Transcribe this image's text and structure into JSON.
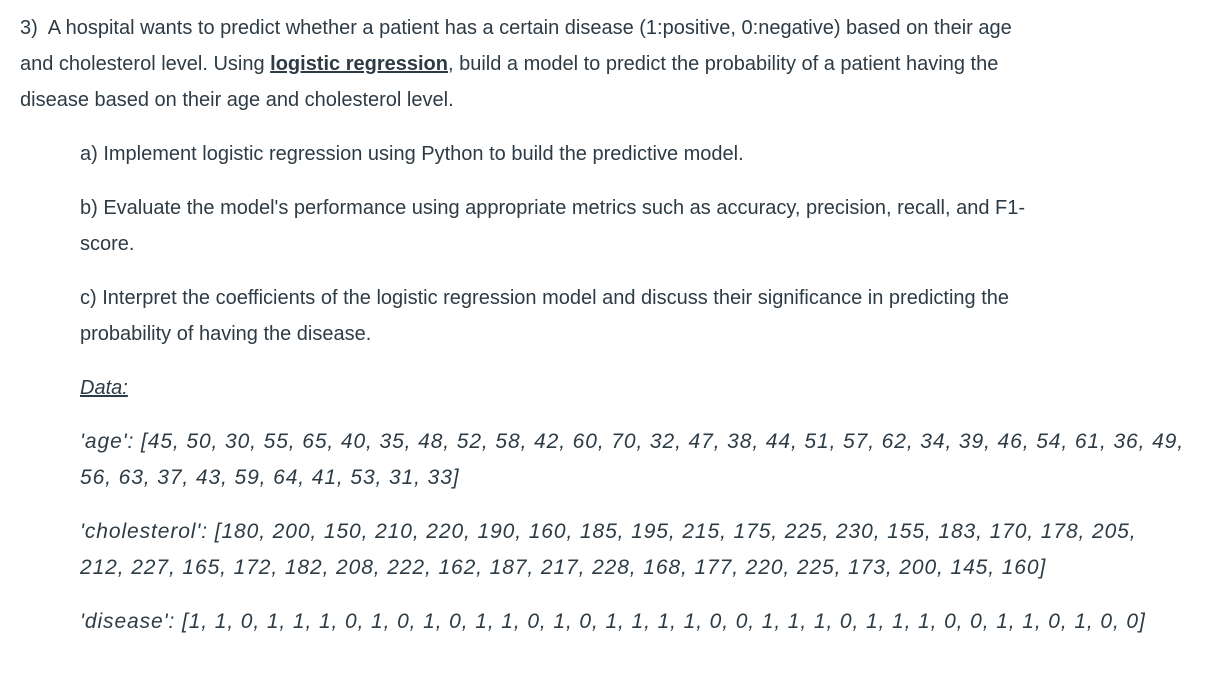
{
  "page": {
    "text_color": "#2d3b45",
    "background_color": "#ffffff"
  },
  "question": {
    "intro": {
      "part1": "3)  A hospital wants to predict whether a patient has a certain disease (1:positive, 0:negative) based on their age\nand cholesterol level. Using ",
      "highlight": "logistic regression",
      "part3": ", build a model to predict the probability of a patient having the\ndisease based on their age and cholesterol level."
    },
    "subparts": [
      {
        "id": "a",
        "text": "a) Implement logistic regression using Python to build the predictive model."
      },
      {
        "id": "b",
        "text": "b) Evaluate the model's performance using appropriate metrics such as accuracy, precision, recall, and F1-\nscore."
      },
      {
        "id": "c",
        "text": "c) Interpret the coefficients of the logistic regression model and discuss their significance in predicting the\nprobability of having the disease."
      }
    ],
    "data_section": {
      "heading": "Data:",
      "lines": {
        "age": "'age': [45, 50, 30, 55, 65, 40, 35, 48, 52, 58, 42, 60, 70, 32, 47, 38, 44, 51, 57, 62, 34, 39, 46, 54, 61, 36, 49,\n56, 63, 37, 43, 59, 64, 41, 53, 31, 33]",
        "cholesterol": "'cholesterol': [180, 200, 150, 210, 220, 190, 160, 185, 195, 215, 175, 225, 230, 155, 183, 170, 178, 205,\n212, 227, 165, 172, 182, 208, 222, 162, 187, 217, 228, 168, 177, 220, 225, 173, 200, 145, 160]",
        "disease": "'disease': [1, 1, 0, 1, 1, 1, 0, 1, 0, 1, 0, 1, 1, 0, 1, 0, 1, 1, 1, 1, 0, 0, 1, 1, 1, 0, 1, 1, 1, 0, 0, 1, 1, 0, 1, 0, 0]"
      },
      "dataset": {
        "age": [
          45,
          50,
          30,
          55,
          65,
          40,
          35,
          48,
          52,
          58,
          42,
          60,
          70,
          32,
          47,
          38,
          44,
          51,
          57,
          62,
          34,
          39,
          46,
          54,
          61,
          36,
          49,
          56,
          63,
          37,
          43,
          59,
          64,
          41,
          53,
          31,
          33
        ],
        "cholesterol": [
          180,
          200,
          150,
          210,
          220,
          190,
          160,
          185,
          195,
          215,
          175,
          225,
          230,
          155,
          183,
          170,
          178,
          205,
          212,
          227,
          165,
          172,
          182,
          208,
          222,
          162,
          187,
          217,
          228,
          168,
          177,
          220,
          225,
          173,
          200,
          145,
          160
        ],
        "disease": [
          1,
          1,
          0,
          1,
          1,
          1,
          0,
          1,
          0,
          1,
          0,
          1,
          1,
          0,
          1,
          0,
          1,
          1,
          1,
          1,
          0,
          0,
          1,
          1,
          1,
          0,
          1,
          1,
          1,
          0,
          0,
          1,
          1,
          0,
          1,
          0,
          0
        ]
      }
    }
  }
}
